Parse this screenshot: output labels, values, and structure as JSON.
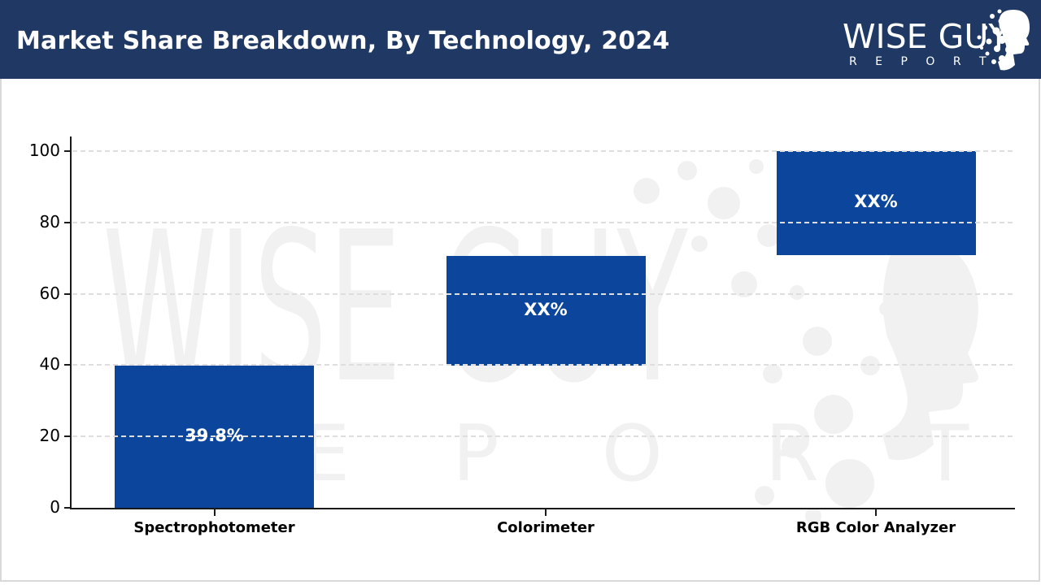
{
  "header": {
    "title": "Market Share Breakdown, By Technology, 2024",
    "bg_color": "#1f3864",
    "logo": {
      "line1": "WISE GUY",
      "line2": "R E P O R T S"
    }
  },
  "watermark": {
    "line1": "WISE GUY",
    "line2": "R E P O R T S"
  },
  "chart_data": {
    "type": "bar",
    "subtype": "floating-waterfall",
    "title": "Market Share Breakdown, By Technology, 2024",
    "xlabel": "",
    "ylabel": "",
    "categories": [
      "Spectrophotometer",
      "Colorimeter",
      "RGB Color Analyzer"
    ],
    "segments": [
      {
        "category": "Spectrophotometer",
        "start": 0,
        "end": 39.8,
        "label": "39.8%"
      },
      {
        "category": "Colorimeter",
        "start": 39.8,
        "end": 70.6,
        "label": "XX%"
      },
      {
        "category": "RGB Color Analyzer",
        "start": 70.8,
        "end": 100,
        "label": "XX%"
      }
    ],
    "yticks": [
      0,
      20,
      40,
      60,
      80,
      100
    ],
    "ylim": [
      0,
      103.5
    ],
    "grid": "horizontal-dashed",
    "legend": "none",
    "bar_color": "#0c459c",
    "bar_label_color": "#ffffff"
  }
}
